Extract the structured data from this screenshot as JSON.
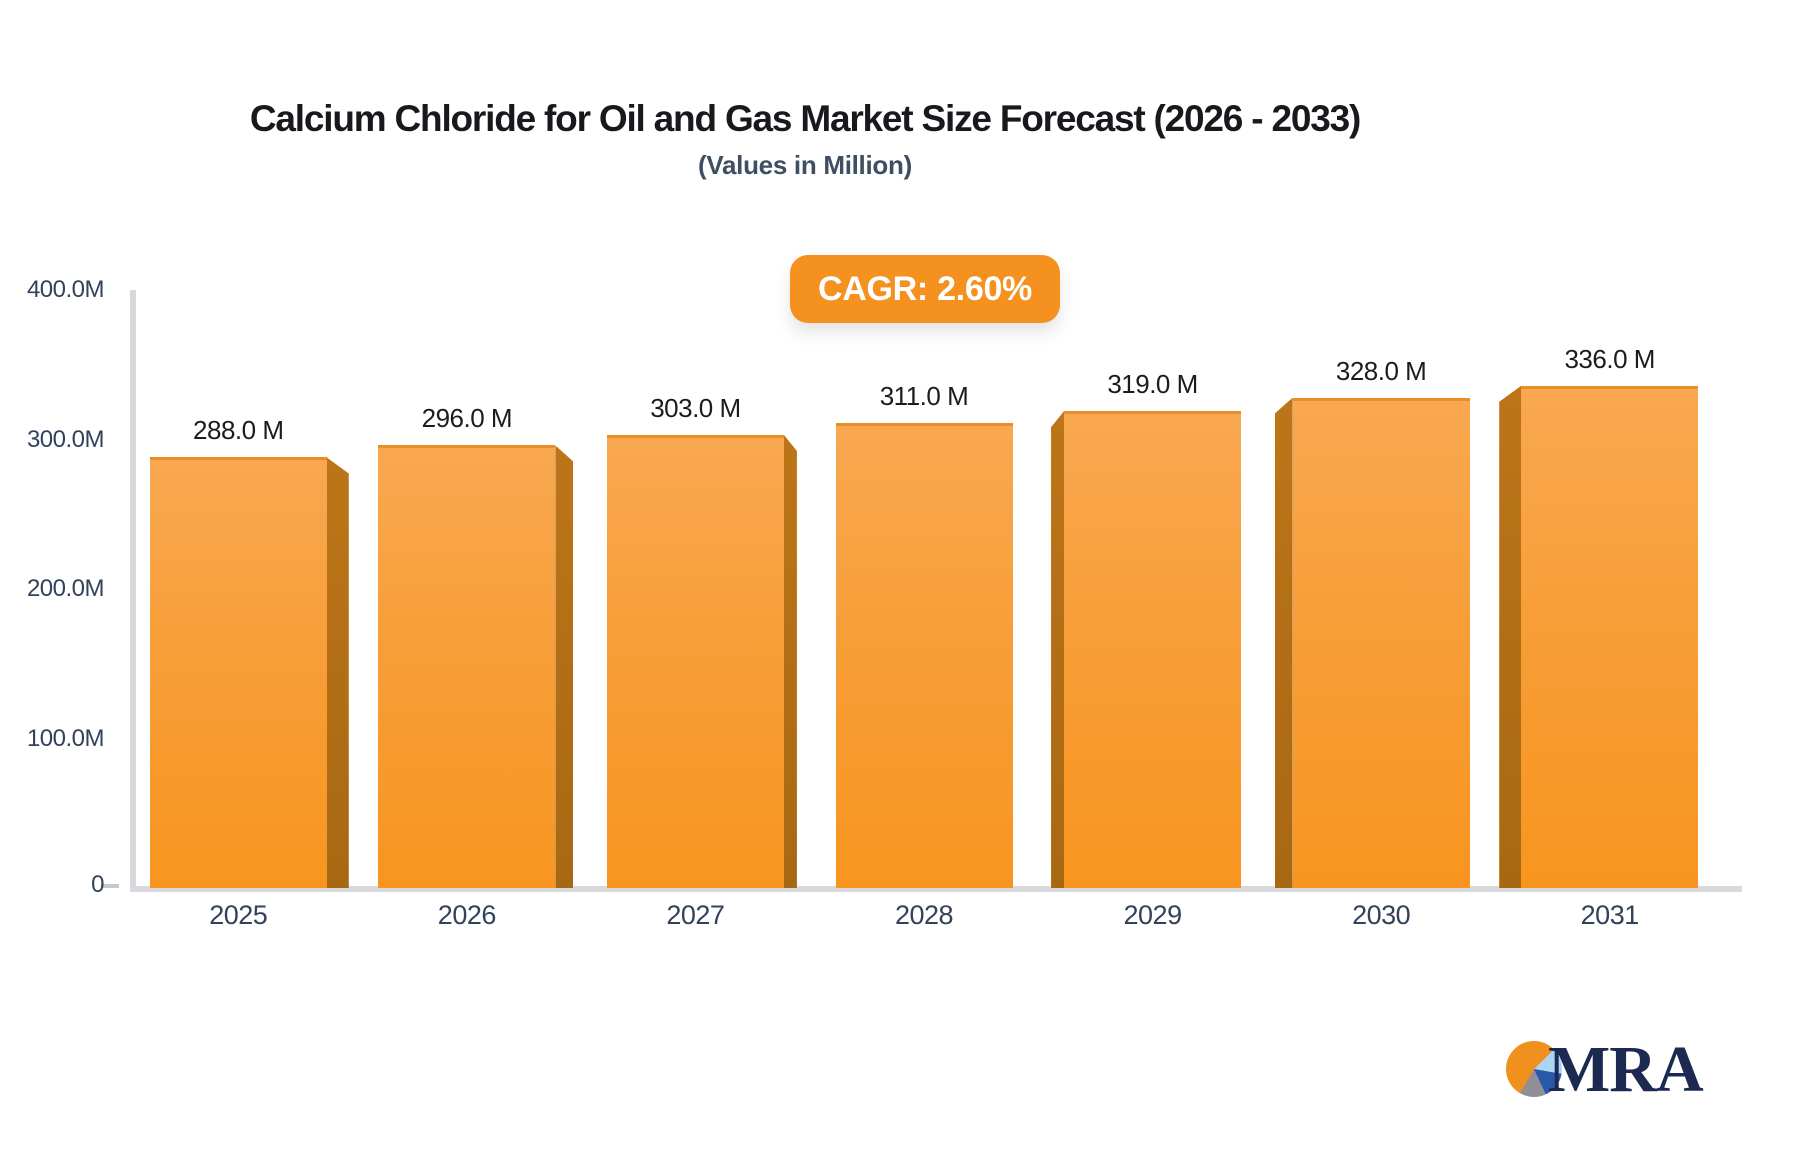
{
  "header": {
    "title": "Calcium Chloride for Oil and Gas Market Size Forecast (2026 - 2033)",
    "subtitle": "(Values in Million)",
    "cagr_label": "CAGR: 2.60%"
  },
  "chart_data": {
    "type": "bar",
    "title": "Calcium Chloride for Oil and Gas Market Size Forecast (2026 - 2033)",
    "subtitle": "(Values in Million)",
    "cagr_pct": 2.6,
    "categories": [
      "2025",
      "2026",
      "2027",
      "2028",
      "2029",
      "2030",
      "2031"
    ],
    "values": [
      288.0,
      296.0,
      303.0,
      311.0,
      319.0,
      328.0,
      336.0
    ],
    "bar_labels": [
      "288.0 M",
      "296.0 M",
      "303.0 M",
      "311.0 M",
      "319.0 M",
      "328.0 M",
      "336.0 M"
    ],
    "xlabel": "",
    "ylabel": "",
    "ylim": [
      0,
      400
    ],
    "yticks": [
      {
        "label": "400.0M",
        "value": 400
      },
      {
        "label": "300.0M",
        "value": 300
      },
      {
        "label": "200.0M",
        "value": 200
      },
      {
        "label": "100.0M",
        "value": 100
      },
      {
        "label": "0",
        "value": 0
      }
    ],
    "grid": false,
    "legend": false,
    "bar_style": "3d-bevel",
    "colors": {
      "bar_top": "#f9a851",
      "bar_bottom": "#f8951f",
      "bar_bevel": "#b06d15",
      "axis_line": "#d8d9dd",
      "tick_text": "#32425c",
      "badge_bg": "#f5911e",
      "badge_text": "#ffffff"
    }
  },
  "branding": {
    "logo_text": "MRA",
    "logo_icon": "pie-chart-icon",
    "logo_colors": [
      "#f0911e",
      "#abd6f3",
      "#2a59ac",
      "#908e96"
    ]
  }
}
